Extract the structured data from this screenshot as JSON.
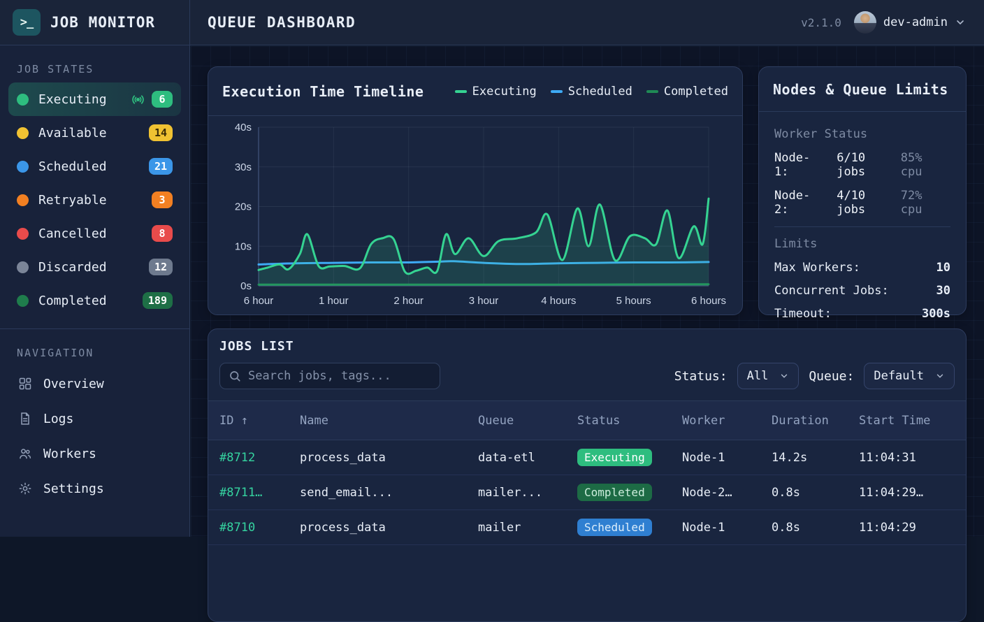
{
  "app": {
    "title": "JOB MONITOR",
    "page_title": "QUEUE DASHBOARD",
    "version": "v2.1.0",
    "user": "dev-admin"
  },
  "colors": {
    "accent_green": "#2ebd7f",
    "accent_blue": "#3b96e8",
    "badge_yellow": "#f0c232",
    "badge_orange": "#f28022",
    "badge_red": "#e84b4b",
    "badge_gray": "#7b8598",
    "badge_dark_green": "#1e6f46"
  },
  "sidebar": {
    "job_states_header": "JOB STATES",
    "states": [
      {
        "label": "Executing",
        "count": "6",
        "dot": "#2ebd7f",
        "badge_bg": "#2ebd7f",
        "badge_text": "#ffffff",
        "active": true,
        "live": true
      },
      {
        "label": "Available",
        "count": "14",
        "dot": "#f0c232",
        "badge_bg": "#f0c232",
        "badge_text": "#3a2c05",
        "active": false,
        "live": false
      },
      {
        "label": "Scheduled",
        "count": "21",
        "dot": "#3b96e8",
        "badge_bg": "#3b96e8",
        "badge_text": "#ffffff",
        "active": false,
        "live": false
      },
      {
        "label": "Retryable",
        "count": "3",
        "dot": "#f28022",
        "badge_bg": "#f28022",
        "badge_text": "#ffffff",
        "active": false,
        "live": false
      },
      {
        "label": "Cancelled",
        "count": "8",
        "dot": "#e84b4b",
        "badge_bg": "#e84b4b",
        "badge_text": "#ffffff",
        "active": false,
        "live": false
      },
      {
        "label": "Discarded",
        "count": "12",
        "dot": "#7b8598",
        "badge_bg": "#6e7a8e",
        "badge_text": "#ffffff",
        "active": false,
        "live": false
      },
      {
        "label": "Completed",
        "count": "189",
        "dot": "#1f7d4c",
        "badge_bg": "#1e6f46",
        "badge_text": "#ffffff",
        "active": false,
        "live": false
      }
    ],
    "navigation_header": "NAVIGATION",
    "nav_items": [
      {
        "label": "Overview",
        "icon": "grid-icon"
      },
      {
        "label": "Logs",
        "icon": "document-icon"
      },
      {
        "label": "Workers",
        "icon": "people-icon"
      },
      {
        "label": "Settings",
        "icon": "gear-icon"
      }
    ]
  },
  "chart_card": {
    "title": "Execution Time Timeline"
  },
  "chart_data": {
    "type": "line",
    "title": "Execution Time Timeline",
    "xlim": [
      0,
      6
    ],
    "ylim": [
      0,
      40
    ],
    "grid": true,
    "legend_position": "top-right",
    "x_tick_labels": [
      "6 hour",
      "1 hour",
      "2 hour",
      "3 hour",
      "4 hours",
      "5 hours",
      "6 hours"
    ],
    "y_tick_labels": [
      "0s",
      "10s",
      "20s",
      "30s",
      "40s"
    ],
    "y_ticks": [
      0,
      10,
      20,
      30,
      40
    ],
    "series": [
      {
        "name": "Completed",
        "color": "#1f8a55",
        "fill": null,
        "x": [
          0,
          1,
          2,
          3,
          4,
          5,
          6
        ],
        "y": [
          0.3,
          0.3,
          0.3,
          0.3,
          0.3,
          0.35,
          0.4
        ]
      },
      {
        "name": "Scheduled",
        "color": "#3eaaf5",
        "fill": null,
        "x": [
          0,
          0.5,
          1.0,
          1.5,
          2.0,
          2.4,
          2.6,
          3.0,
          3.5,
          4.0,
          4.5,
          5.0,
          5.5,
          6.0
        ],
        "y": [
          5.4,
          5.7,
          5.8,
          5.9,
          5.9,
          6.1,
          6.2,
          5.8,
          5.5,
          5.7,
          5.8,
          5.9,
          5.9,
          6.0
        ]
      },
      {
        "name": "Executing",
        "color": "#35d392",
        "fill": "rgba(53,211,146,0.16)",
        "x": [
          0,
          0.12,
          0.28,
          0.4,
          0.55,
          0.65,
          0.8,
          0.95,
          1.15,
          1.35,
          1.5,
          1.65,
          1.8,
          1.95,
          2.1,
          2.25,
          2.38,
          2.5,
          2.62,
          2.8,
          3.0,
          3.2,
          3.45,
          3.7,
          3.85,
          4.05,
          4.25,
          4.4,
          4.55,
          4.75,
          4.95,
          5.15,
          5.3,
          5.45,
          5.6,
          5.8,
          5.92,
          6.0
        ],
        "y": [
          4.0,
          4.6,
          5.4,
          4.2,
          8.0,
          13.0,
          5.0,
          4.9,
          5.0,
          4.4,
          10.5,
          12.0,
          11.8,
          3.6,
          3.8,
          4.6,
          3.7,
          13.0,
          8.0,
          12.0,
          7.5,
          11.3,
          12.0,
          13.5,
          18.0,
          6.5,
          19.5,
          10.0,
          20.5,
          6.5,
          12.5,
          12.0,
          10.5,
          19.0,
          7.0,
          15.0,
          10.5,
          22.0
        ]
      }
    ],
    "legend": [
      {
        "label": "Executing",
        "color": "#35d392"
      },
      {
        "label": "Scheduled",
        "color": "#3eaaf5"
      },
      {
        "label": "Completed",
        "color": "#1f8a55"
      }
    ]
  },
  "nodes_card": {
    "title": "Nodes & Queue Limits",
    "worker_status_header": "Worker Status",
    "nodes": [
      {
        "name": "Node-1:",
        "jobs": "6/10 jobs",
        "cpu": "85% cpu"
      },
      {
        "name": "Node-2:",
        "jobs": "4/10 jobs",
        "cpu": "72% cpu"
      }
    ],
    "limits_header": "Limits",
    "limits": [
      {
        "label": "Max Workers:",
        "value": "10"
      },
      {
        "label": "Concurrent Jobs:",
        "value": "30"
      },
      {
        "label": "Timeout:",
        "value": "300s"
      }
    ]
  },
  "jobs_card": {
    "title": "JOBS LIST",
    "search_placeholder": "Search jobs, tags...",
    "filters": {
      "status_label": "Status:",
      "status_value": "All",
      "queue_label": "Queue:",
      "queue_value": "Default"
    },
    "table": {
      "columns": [
        "ID ↑",
        "Name",
        "Queue",
        "Status",
        "Worker",
        "Duration",
        "Start Time"
      ],
      "status_styles": {
        "executing": {
          "bg": "#2ebd7f",
          "text": "#ffffff"
        },
        "completed": {
          "bg": "#1d6b45",
          "text": "#cdeedd"
        },
        "scheduled": {
          "bg": "#2f7fd1",
          "text": "#dcedfb"
        }
      },
      "rows": [
        {
          "id": "#8712",
          "name": "process_data",
          "queue": "data-etl",
          "status": "Executing",
          "status_type": "executing",
          "worker": "Node-1",
          "duration": "14.2s",
          "start": "11:04:31"
        },
        {
          "id": "#8711…",
          "name": "send_email...",
          "queue": "mailer...",
          "status": "Completed",
          "status_type": "completed",
          "worker": "Node-2…",
          "duration": "0.8s",
          "start": "11:04:29…"
        },
        {
          "id": "#8710",
          "name": "process_data",
          "queue": "mailer",
          "status": "Scheduled",
          "status_type": "scheduled",
          "worker": "Node-1",
          "duration": "0.8s",
          "start": "11:04:29"
        }
      ]
    }
  }
}
